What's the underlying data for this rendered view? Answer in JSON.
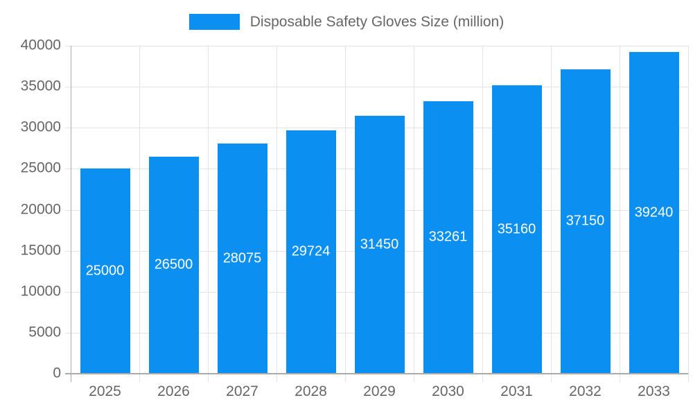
{
  "colors": {
    "bar": "#0b90f2",
    "label_text": "#666666",
    "grid_line": "#e3e3e3",
    "axis_line": "#aaaaaa",
    "value_text": "#ffffff",
    "background": "#ffffff"
  },
  "legend": {
    "label": "Disposable Safety Gloves Size (million)"
  },
  "chart_data": {
    "type": "bar",
    "title": "Disposable Safety Gloves Size (million)",
    "categories": [
      "2025",
      "2026",
      "2027",
      "2028",
      "2029",
      "2030",
      "2031",
      "2032",
      "2033"
    ],
    "values": [
      25000,
      26500,
      28075,
      29724,
      31450,
      33261,
      35160,
      37150,
      39240
    ],
    "xlabel": "",
    "ylabel": "",
    "ylim": [
      0,
      40000
    ],
    "yticks": [
      0,
      5000,
      10000,
      15000,
      20000,
      25000,
      30000,
      35000,
      40000
    ],
    "grid": true,
    "legend_position": "top-center",
    "value_labels": "centered-inside-bars"
  }
}
